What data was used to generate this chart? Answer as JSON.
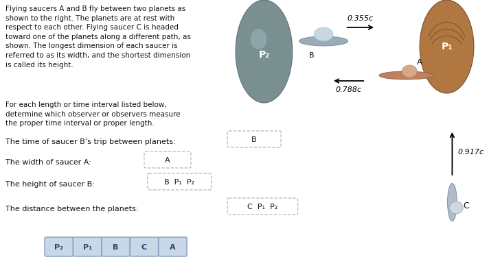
{
  "bg_color": "#ffffff",
  "text_color": "#111111",
  "description": "Flying saucers A and B fly between two planets as\nshown to the right. The planets are at rest with\nrespect to each other. Flying saucer C is headed\ntoward one of the planets along a different path, as\nshown. The longest dimension of each saucer is\nreferred to as its width, and the shortest dimension\nis called its height.",
  "description2": "For each length or time interval listed below,\ndetermine which observer or observers measure\nthe proper time interval or proper length.",
  "q1_label": "The time of saucer B’s trip between planets:",
  "q1_answer": "B",
  "q2_label": "The width of saucer A:",
  "q2_answer": "A",
  "q3_label": "The height of saucer B:",
  "q3_answer": "B  P₁  P₂",
  "q4_label": "The distance between the planets:",
  "q4_answer": "C  P₁  P₂",
  "speed_B": "0.355c",
  "speed_A": "0.788c",
  "speed_C": "0.917c",
  "buttons": [
    "P₂",
    "P₁",
    "B",
    "C",
    "A"
  ],
  "button_color": "#c8d8e8",
  "button_border": "#8899bb",
  "box_edge": "#aaaacc",
  "planet2_color": "#7a9090",
  "planet2_hi": "#a0b8c0",
  "planet1_color": "#b07840",
  "planet1_dark": "#7a5030",
  "saucerB_body": "#9aacb8",
  "saucerB_dome": "#c8d8e0",
  "saucerA_body": "#c08060",
  "saucerA_dome": "#d8a888",
  "saucerC_body": "#a0b0b8",
  "saucerC_dome": "#c0ccd4"
}
